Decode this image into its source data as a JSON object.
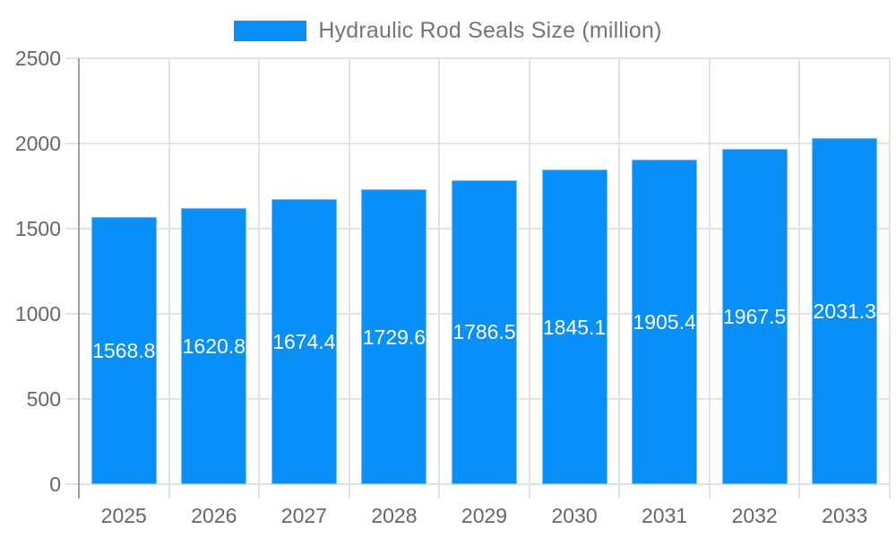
{
  "legend": {
    "label": "Hydraulic Rod Seals Size (million)"
  },
  "colors": {
    "bar": "#0990f8",
    "bar_stroke": "#78bdff",
    "grid": "#e2e2e2",
    "axis": "#9e9e9e",
    "tick_text": "#666666",
    "legend_text": "#757575",
    "value_text": "#ffffff"
  },
  "chart_data": {
    "type": "bar",
    "title": "Hydraulic Rod Seals Size (million)",
    "categories": [
      "2025",
      "2026",
      "2027",
      "2028",
      "2029",
      "2030",
      "2031",
      "2032",
      "2033"
    ],
    "values": [
      1568.8,
      1620.8,
      1674.4,
      1729.6,
      1786.5,
      1845.1,
      1905.4,
      1967.5,
      2031.3
    ],
    "value_labels": [
      "1568.8",
      "1620.8",
      "1674.4",
      "1729.6",
      "1786.5",
      "1845.1",
      "1905.4",
      "1967.5",
      "2031.3"
    ],
    "xlabel": "",
    "ylabel": "",
    "ylim": [
      0,
      2500
    ],
    "yticks": [
      0,
      500,
      1000,
      1500,
      2000,
      2500
    ],
    "grid": true,
    "legend_position": "top",
    "bar_color": "#0990f8",
    "value_label_position": "center-inside"
  }
}
